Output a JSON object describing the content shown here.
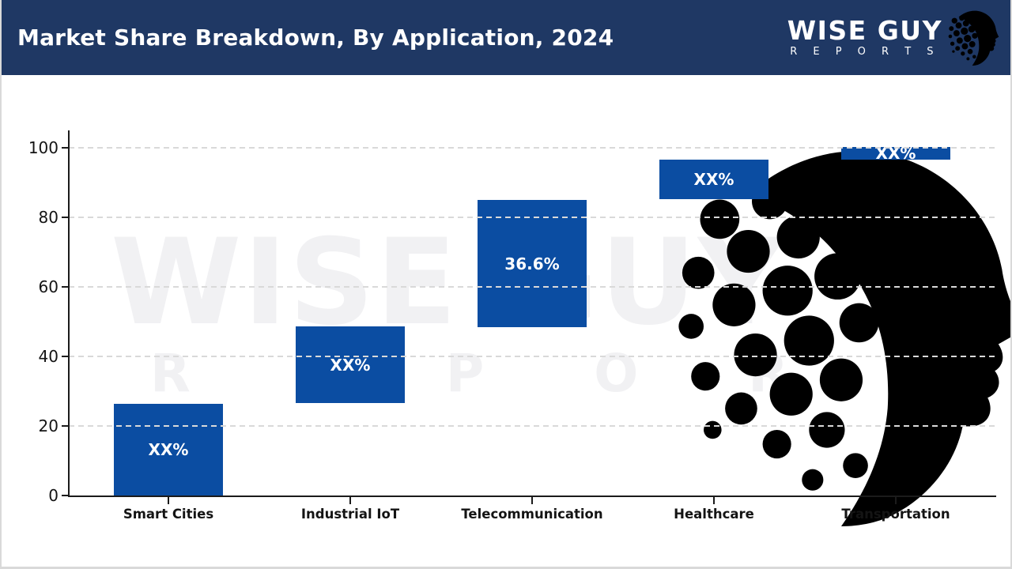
{
  "header": {
    "title": "Market Share Breakdown, By Application, 2024",
    "bg_color": "#1f3864",
    "brand": {
      "name": "WISE GUY",
      "sub": "R E P O R T S"
    }
  },
  "watermark": {
    "line1": "WISE GUY",
    "line2": "R E P O R T S"
  },
  "chart_data": {
    "type": "bar",
    "variant": "waterfall-floating-bars",
    "title": "Market Share Breakdown, By Application, 2024",
    "categories": [
      "Smart Cities",
      "Industrial IoT",
      "Telecommunication",
      "Healthcare",
      "Transportation"
    ],
    "segments": [
      {
        "category": "Smart Cities",
        "start": 0,
        "end": 26.4,
        "label": "XX%"
      },
      {
        "category": "Industrial IoT",
        "start": 26.6,
        "end": 48.6,
        "label": "XX%"
      },
      {
        "category": "Telecommunication",
        "start": 48.4,
        "end": 85.0,
        "label": "36.6%"
      },
      {
        "category": "Healthcare",
        "start": 85.2,
        "end": 96.6,
        "label": "XX%"
      },
      {
        "category": "Transportation",
        "start": 96.6,
        "end": 100.2,
        "label": "XX%"
      }
    ],
    "yticks": [
      0,
      20,
      40,
      60,
      80,
      100
    ],
    "ylim": [
      0,
      105
    ],
    "xlabel": "",
    "ylabel": "",
    "grid": "horizontal-dashed-over-bars",
    "legend": "none",
    "bar_color": "#0b4da2",
    "bar_label_color": "#ffffff",
    "grid_color": "#d9d9d9",
    "axis_color": "#1b1b1b"
  }
}
